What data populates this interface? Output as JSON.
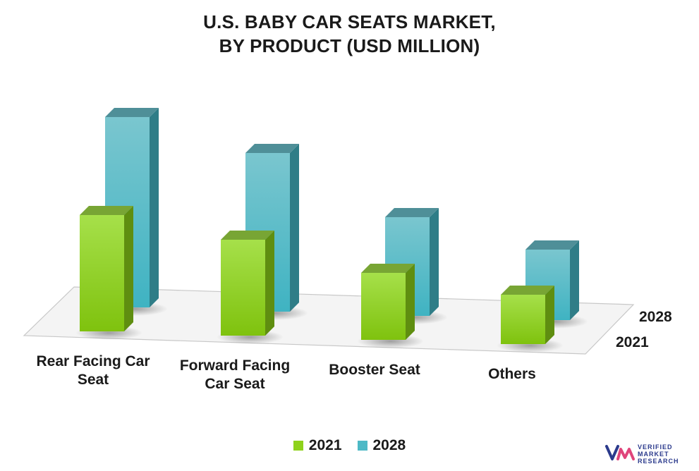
{
  "title_lines": [
    "U.S. BABY CAR SEATS MARKET,",
    "BY PRODUCT (USD MILLION)"
  ],
  "colors": {
    "series_2021": "#8fd21c",
    "series_2028": "#4db9c6",
    "floor": "#f4f4f4",
    "floor_edge": "#c8c8c8"
  },
  "chart_data": {
    "type": "bar",
    "title": "U.S. BABY CAR SEATS MARKET, BY PRODUCT (USD MILLION)",
    "categories": [
      "Rear Facing Car Seat",
      "Forward Facing Car Seat",
      "Booster Seat",
      "Others"
    ],
    "category_label_lines": [
      [
        "Rear Facing Car",
        "Seat"
      ],
      [
        "Forward Facing",
        "Car Seat"
      ],
      [
        "Booster Seat"
      ],
      [
        "Others"
      ]
    ],
    "series": [
      {
        "name": "2021",
        "values": [
          165,
          136,
          95,
          70
        ]
      },
      {
        "name": "2028",
        "values": [
          270,
          225,
          140,
          100
        ]
      }
    ],
    "depth_labels": [
      "2028",
      "2021"
    ],
    "ylim": [
      0,
      280
    ],
    "grid": false,
    "legend": "bottom-center",
    "three_d": true
  },
  "legend": [
    {
      "label": "2021"
    },
    {
      "label": "2028"
    }
  ],
  "brand": {
    "line1": "VERIFIED",
    "line2": "MARKET",
    "line3": "RESEARCH"
  }
}
